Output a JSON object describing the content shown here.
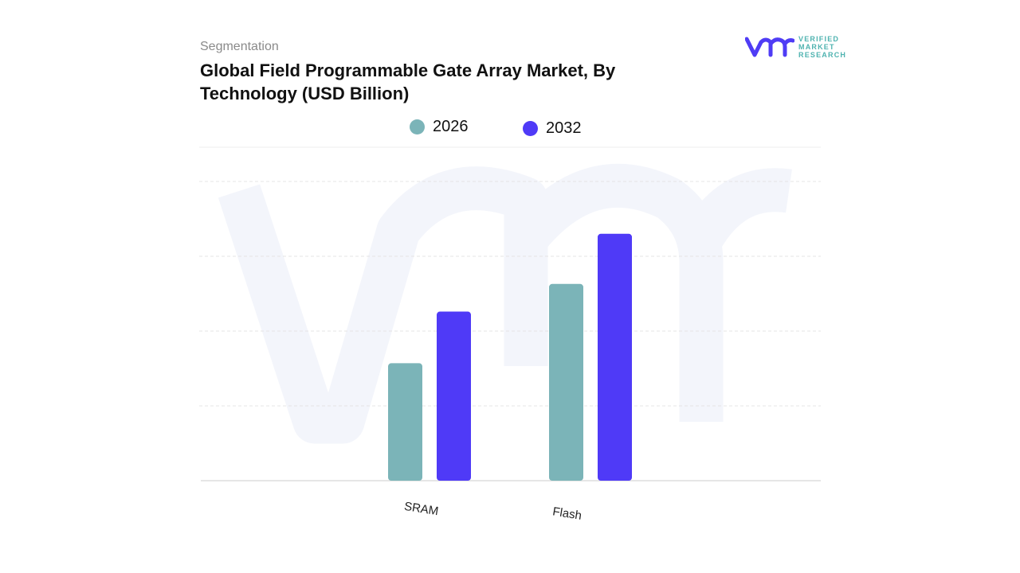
{
  "header": {
    "segment_label": "Segmentation",
    "title": "Global Field Programmable Gate Array Market, By Technology (USD Billion)"
  },
  "logo": {
    "text_lines": [
      "VERIFIED",
      "MARKET",
      "RESEARCH"
    ],
    "color": "#4f3cf5",
    "accent": "#4fb3b0"
  },
  "chart_data": {
    "type": "bar",
    "title": "Global Field Programmable Gate Array Market, By Technology (USD Billion)",
    "categories": [
      "SRAM",
      "Flash"
    ],
    "series": [
      {
        "name": "2026",
        "values": [
          1.57,
          2.63
        ],
        "color": "#7bb4b8"
      },
      {
        "name": "2032",
        "values": [
          2.26,
          3.3
        ],
        "color": "#4f3af7"
      }
    ],
    "ylim": [
      0,
      4.45
    ],
    "y_ticks_labeled": false,
    "grid": true,
    "legend_placement": "top-center",
    "xlabel": "",
    "ylabel": ""
  }
}
